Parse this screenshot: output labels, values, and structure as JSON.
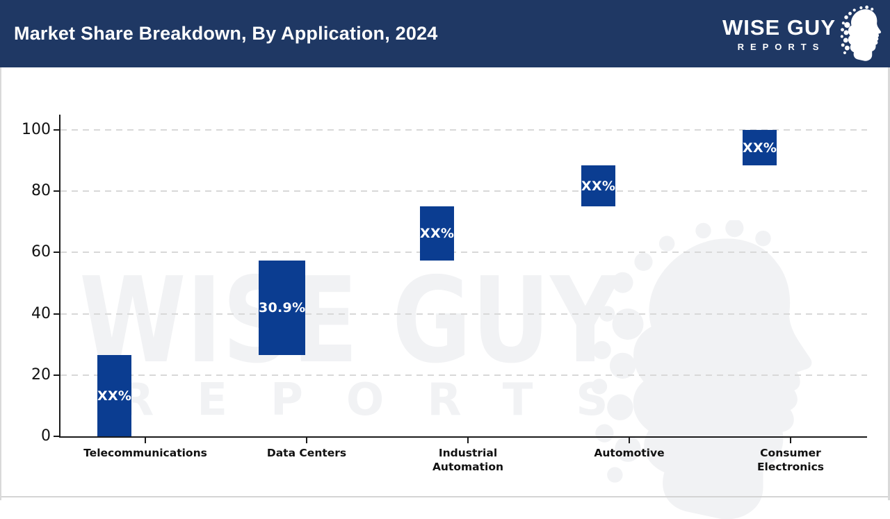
{
  "header": {
    "title": "Market Share Breakdown, By Application, 2024",
    "logo": {
      "name": "WISE GUY",
      "sub": "REPORTS"
    }
  },
  "watermark": {
    "line1": "WISE GUY",
    "line2": "REPORTS"
  },
  "colors": {
    "header_bg": "#1f3864",
    "bar": "#0b3d91",
    "grid": "#d8d8d8",
    "axis": "#1a1a1a",
    "watermark": "#f1f2f4",
    "bar_label_text": "#ffffff",
    "title_text": "#ffffff"
  },
  "chart_data": {
    "type": "bar",
    "subtype": "waterfall",
    "title": "Market Share Breakdown, By Application, 2024",
    "categories": [
      "Telecommunications",
      "Data Centers",
      "Industrial Automation",
      "Automotive",
      "Consumer Electronics"
    ],
    "segments": [
      {
        "category": "Telecommunications",
        "start": 0,
        "end": 26.5,
        "label": "XX%"
      },
      {
        "category": "Data Centers",
        "start": 26.5,
        "end": 57.4,
        "label": "30.9%",
        "value": 30.9
      },
      {
        "category": "Industrial Automation",
        "start": 57.4,
        "end": 75.1,
        "label": "XX%"
      },
      {
        "category": "Automotive",
        "start": 75.1,
        "end": 88.4,
        "label": "XX%"
      },
      {
        "category": "Consumer Electronics",
        "start": 88.4,
        "end": 100,
        "label": "XX%"
      }
    ],
    "yticks": [
      0,
      20,
      40,
      60,
      80,
      100
    ],
    "ylim": [
      0,
      105
    ],
    "xlabel": "",
    "ylabel": "",
    "grid": "dashed-horizontal",
    "legend": null
  }
}
